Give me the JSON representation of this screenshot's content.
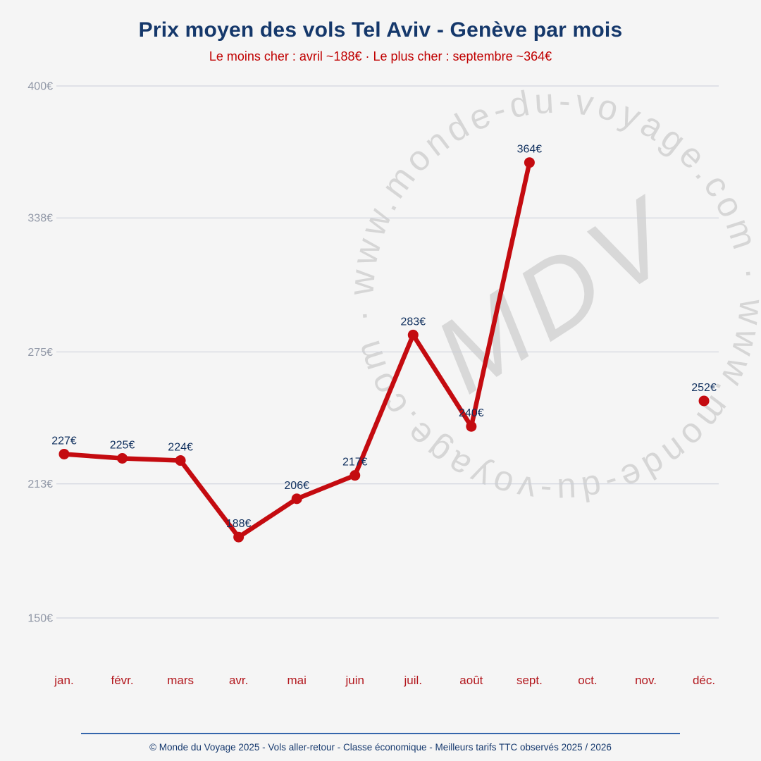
{
  "header": {
    "title": "Prix moyen des vols Tel Aviv - Genève par mois",
    "subtitle": "Le moins cher : avril ~188€ · Le plus cher : septembre ~364€"
  },
  "watermark": {
    "circle_text": "www.monde-du-voyage.com",
    "center_text": "MDV"
  },
  "chart_data": {
    "type": "line",
    "title": "Prix moyen des vols Tel Aviv - Genève par mois",
    "categories": [
      "jan.",
      "févr.",
      "mars",
      "avr.",
      "mai",
      "juin",
      "juil.",
      "août",
      "sept.",
      "oct.",
      "nov.",
      "déc."
    ],
    "values": [
      227,
      225,
      224,
      188,
      206,
      217,
      283,
      240,
      364,
      null,
      null,
      252
    ],
    "unit": "€",
    "ylim": [
      150,
      400
    ],
    "yticks": [
      400,
      338,
      275,
      213,
      150
    ],
    "grid": true,
    "legend": "none",
    "line_color": "#c40b10",
    "point_color": "#c40b10",
    "label_color": "#10305e",
    "axis_label_color_x": "#b2161c",
    "axis_label_color_y": "#9097a6",
    "gridline_color": "#c9cdd9",
    "min_note": "avril ~188€",
    "max_note": "septembre ~364€"
  },
  "footer": {
    "text": "© Monde du Voyage 2025 - Vols aller-retour - Classe économique - Meilleurs tarifs TTC observés 2025 / 2026"
  }
}
